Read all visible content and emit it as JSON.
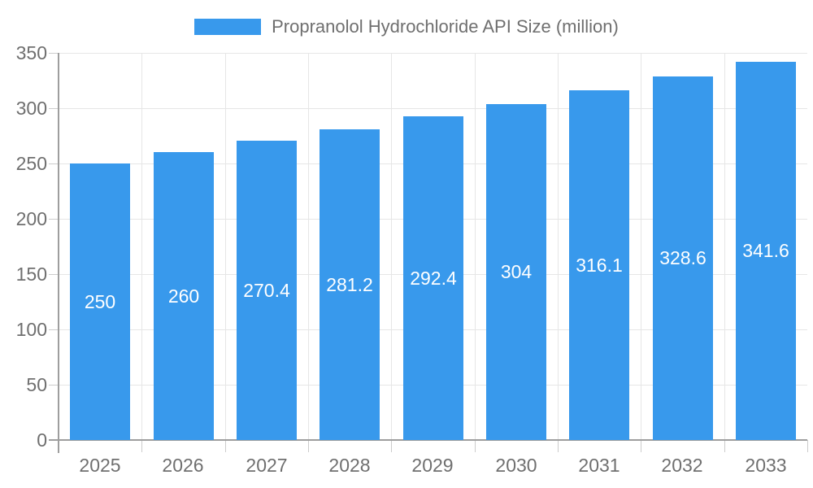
{
  "legend": {
    "label": "Propranolol Hydrochloride API Size (million)"
  },
  "chart_data": {
    "type": "bar",
    "title": "",
    "legend": [
      "Propranolol Hydrochloride API Size (million)"
    ],
    "legend_position": "top",
    "categories": [
      "2025",
      "2026",
      "2027",
      "2028",
      "2029",
      "2030",
      "2031",
      "2032",
      "2033"
    ],
    "series": [
      {
        "name": "Propranolol Hydrochloride API Size (million)",
        "values": [
          250,
          260,
          270.4,
          281.2,
          292.4,
          304,
          316.1,
          328.6,
          341.6
        ]
      }
    ],
    "value_labels": [
      "250",
      "260",
      "270.4",
      "281.2",
      "292.4",
      "304",
      "316.1",
      "328.6",
      "341.6"
    ],
    "xlabel": "",
    "ylabel": "",
    "ylim": [
      0,
      350
    ],
    "ytick_step": 50,
    "y_tick_labels": [
      "0",
      "50",
      "100",
      "150",
      "200",
      "250",
      "300",
      "350"
    ],
    "grid": true
  },
  "colors": {
    "bar": "#3899ec",
    "gridline": "#e6e6e6",
    "tick": "#cccccc",
    "axis_line": "#9e9e9e",
    "axis_text": "#6f6f6f",
    "value_text": "#ffffff",
    "background": "#ffffff"
  }
}
